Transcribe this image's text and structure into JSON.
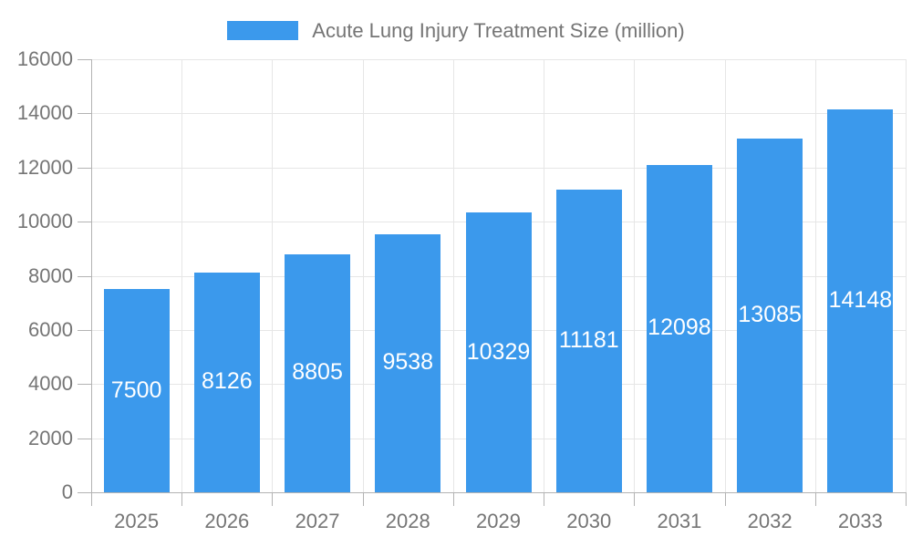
{
  "colors": {
    "bar": "#3B99EC",
    "axis_line": "#B3B3B3",
    "gridline": "#E6E6E6",
    "axis_text": "#757575",
    "bar_label_text": "#FFFFFF",
    "background": "#FFFFFF"
  },
  "chart_data": {
    "type": "bar",
    "title": "Acute Lung Injury Treatment Size (million)",
    "categories": [
      "2025",
      "2026",
      "2027",
      "2028",
      "2029",
      "2030",
      "2031",
      "2032",
      "2033"
    ],
    "series": [
      {
        "name": "Acute Lung Injury Treatment Size (million)",
        "values": [
          7500,
          8126,
          8805,
          9538,
          10329,
          11181,
          12098,
          13085,
          14148
        ]
      }
    ],
    "bar_value_labels": [
      7500,
      8126,
      8805,
      9538,
      10329,
      11181,
      12098,
      13085,
      14148
    ],
    "xlabel": "",
    "ylabel": "",
    "ylim": [
      0,
      16000
    ],
    "ytick_step": 2000,
    "ytick_labels": [
      "0",
      "2000",
      "4000",
      "6000",
      "8000",
      "10000",
      "12000",
      "14000",
      "16000"
    ],
    "grid": true,
    "legend_position": "top-center"
  }
}
